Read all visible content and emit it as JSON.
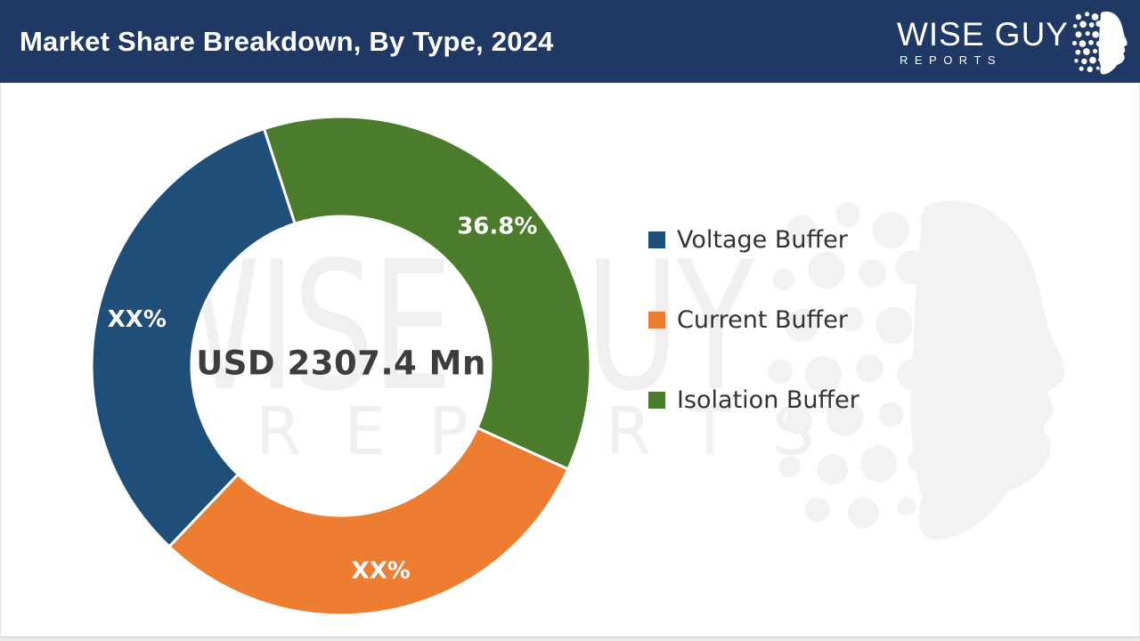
{
  "header": {
    "title": "Market Share Breakdown, By Type, 2024",
    "bg_color": "#1f3864",
    "logo": {
      "line1": "WISE GUY",
      "line2": "REPORTS"
    }
  },
  "watermark": {
    "line1": "WISE GUY",
    "line2": "REPORTS"
  },
  "chart_data": {
    "type": "pie",
    "subtype": "donut",
    "title": "Market Share Breakdown, By Type, 2024",
    "center_label": "USD 2307.4 Mn",
    "start_angle_deg": -18,
    "rotation": "clockwise",
    "slices": [
      {
        "name": "Isolation Buffer",
        "value_pct": 36.8,
        "label": "36.8%",
        "color": "#4a7c2b"
      },
      {
        "name": "Current Buffer",
        "value_pct": 30.3,
        "label": "XX%",
        "color": "#ed7d31"
      },
      {
        "name": "Voltage Buffer",
        "value_pct": 32.9,
        "label": "XX%",
        "color": "#1f4e79"
      }
    ],
    "legend": [
      {
        "label": "Voltage Buffer",
        "color": "#1f4e79"
      },
      {
        "label": "Current Buffer",
        "color": "#ed7d31"
      },
      {
        "label": "Isolation Buffer",
        "color": "#4a7c2b"
      }
    ],
    "legend_position": "right"
  }
}
